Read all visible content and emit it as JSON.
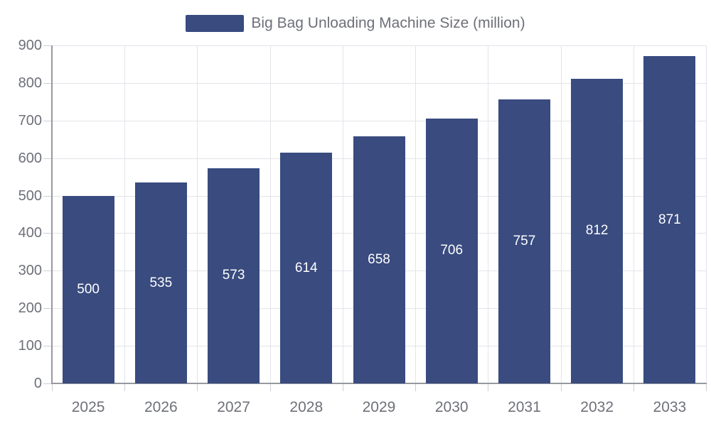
{
  "legend": {
    "label": "Big Bag Unloading Machine Size (million)"
  },
  "chart_data": {
    "type": "bar",
    "title": "Big Bag Unloading Machine Size (million)",
    "legend_entries": [
      "Big Bag Unloading Machine Size (million)"
    ],
    "legend_position": "top",
    "categories": [
      "2025",
      "2026",
      "2027",
      "2028",
      "2029",
      "2030",
      "2031",
      "2032",
      "2033"
    ],
    "series": [
      {
        "name": "Big Bag Unloading Machine Size (million)",
        "values": [
          500,
          535,
          573,
          614,
          658,
          706,
          757,
          812,
          871
        ]
      }
    ],
    "values": [
      500,
      535,
      573,
      614,
      658,
      706,
      757,
      812,
      871
    ],
    "value_labels_shown": true,
    "value_label_position": "inside-center",
    "xlabel": "",
    "ylabel": "",
    "ylim": [
      0,
      900
    ],
    "ytick_step": 100,
    "grid": true,
    "colors": {
      "bar": "#394B7F",
      "bar_value_text": "#ffffff",
      "axis_label": "#6E7079",
      "legend_text": "#6E7079",
      "grid_line": "#E2E4EA",
      "tick_mark": "#CBCED6",
      "axis_line": "#96999F"
    }
  }
}
